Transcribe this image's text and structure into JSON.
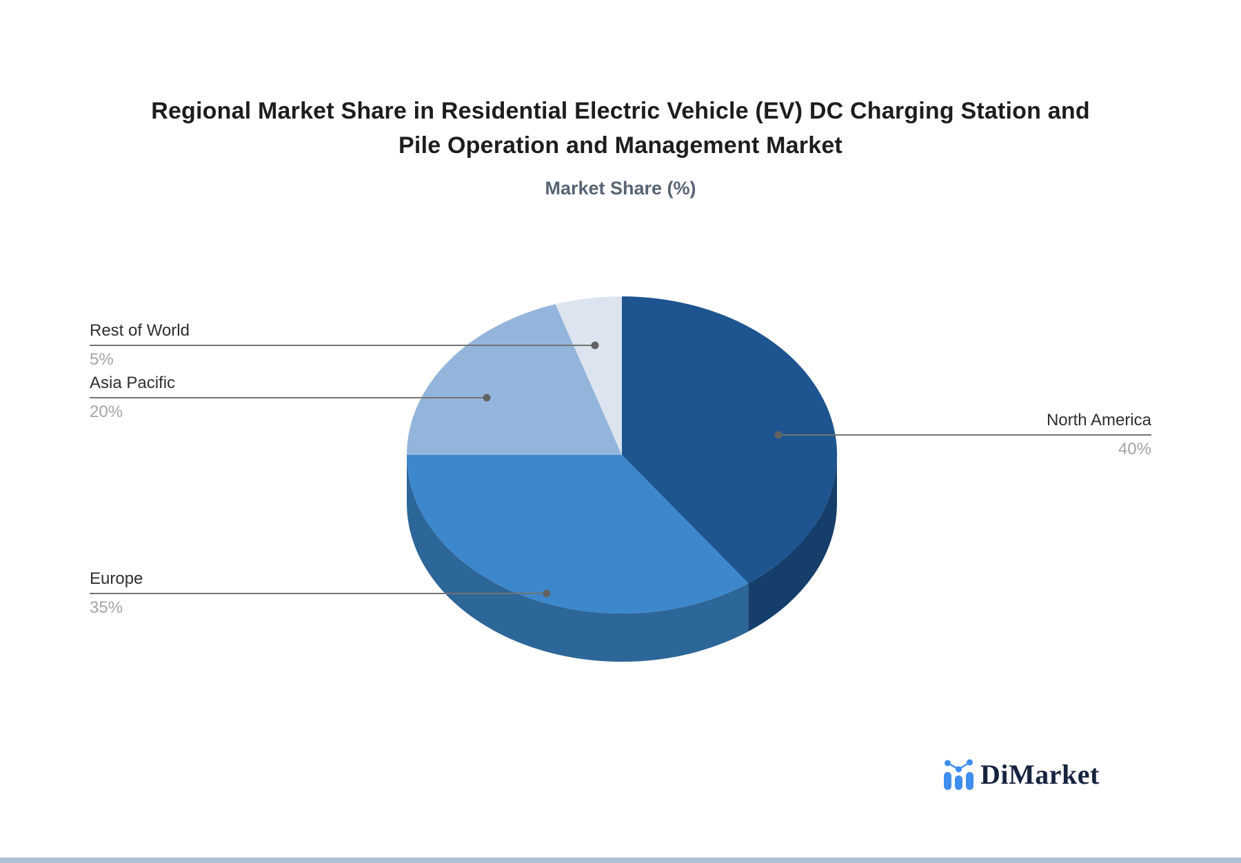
{
  "header": {
    "title_lines": [
      "Regional Market Share in Residential Electric Vehicle (EV) DC Charging Station and",
      "Pile Operation and Management Market"
    ],
    "subtitle": "Market Share (%)"
  },
  "chart_data": {
    "type": "pie",
    "title": "Regional Market Share in Residential Electric Vehicle (EV) DC Charging Station and Pile Operation and Management Market",
    "subtitle": "Market Share (%)",
    "unit": "%",
    "categories": [
      "North America",
      "Europe",
      "Asia Pacific",
      "Rest of World"
    ],
    "values": [
      40,
      35,
      20,
      5
    ],
    "colors": [
      "#1e5590",
      "#3d88cc",
      "#94b5db",
      "#dce4ef"
    ],
    "side_colors": [
      "#153e6b",
      "#2d6698",
      "#6d89a8",
      "#aab7c9"
    ],
    "style": "3d",
    "start_angle_deg": 0,
    "direction": "clockwise",
    "legend_position": "leader-line labels"
  },
  "labels": {
    "north_america": {
      "name": "North America",
      "pct": "40%"
    },
    "europe": {
      "name": "Europe",
      "pct": "35%"
    },
    "asia_pacific": {
      "name": "Asia Pacific",
      "pct": "20%"
    },
    "rest_of_world": {
      "name": "Rest of World",
      "pct": "5%"
    }
  },
  "logo": {
    "text": "DiMarket"
  },
  "ui_colors": {
    "title": "#1d1d1d",
    "subtitle": "#566373",
    "label_text": "#2e2e2e",
    "pct_text": "#a3a3a3",
    "leader_line": "#737373",
    "logo_icon_blue": "#3f8eef",
    "logo_text_navy": "#172440",
    "bottom_bar": "#b0c0d8"
  }
}
